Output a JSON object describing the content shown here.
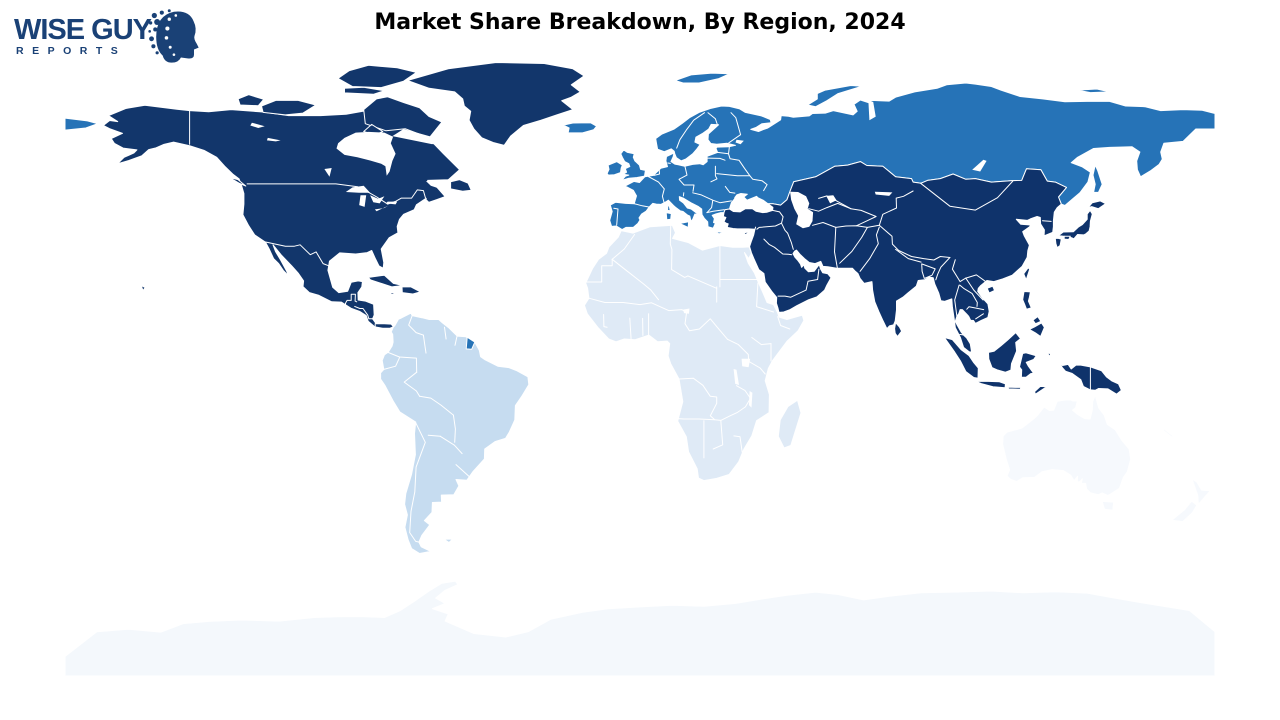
{
  "header": {
    "logo": {
      "line1": "WISE GUY",
      "line2": "REPORTS"
    },
    "title": "Market Share Breakdown, By Region, 2024"
  },
  "map": {
    "ocean_color": "#ffffff",
    "border_color": "#ffffff",
    "logo_color": "#1a4176",
    "title_color": "#000000",
    "regions": {
      "north-america": {
        "label": "North America",
        "color": "#12366b"
      },
      "south-america": {
        "label": "South America",
        "color": "#c6dcf0"
      },
      "europe-russia": {
        "label": "Europe & Russia",
        "color": "#2673b7"
      },
      "asia-middle-east": {
        "label": "Asia & Middle East",
        "color": "#0f336b"
      },
      "africa": {
        "label": "Africa",
        "color": "#dfeaf6"
      },
      "oceania": {
        "label": "Oceania",
        "color": "#f6f9fd"
      },
      "antarctica": {
        "label": "Antarctica",
        "color": "#f4f8fc"
      }
    }
  }
}
